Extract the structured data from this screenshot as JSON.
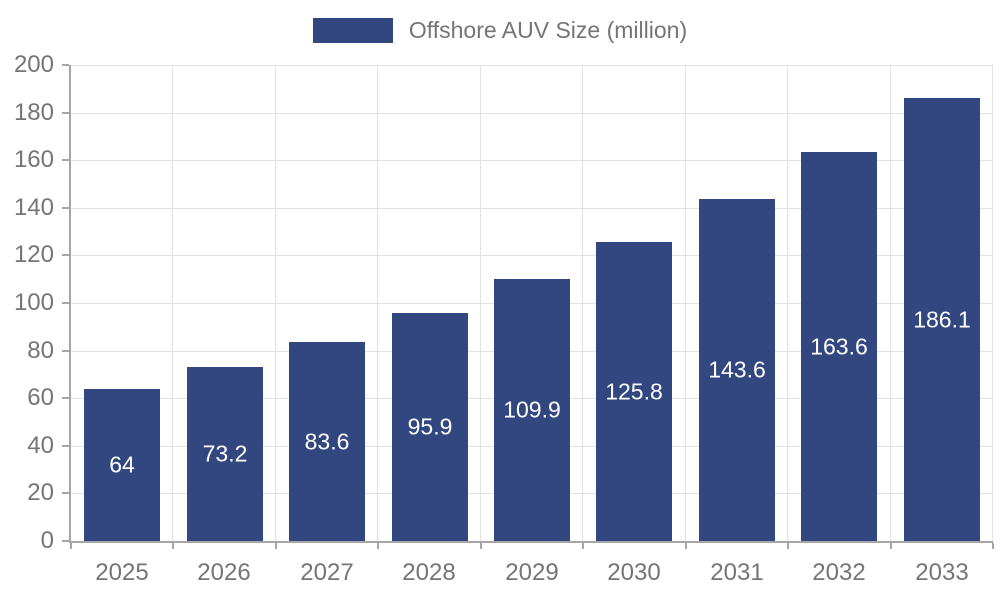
{
  "legend": {
    "label": "Offshore AUV Size (million)"
  },
  "colors": {
    "bar": "#32477F",
    "grid": "#e2e2e2",
    "axis": "#a6a6a6",
    "tick_label": "#757575",
    "bar_label": "#ffffff",
    "background": "#ffffff"
  },
  "chart_data": {
    "type": "bar",
    "title": "Offshore AUV Size (million)",
    "series_name": "Offshore AUV Size (million)",
    "categories": [
      "2025",
      "2026",
      "2027",
      "2028",
      "2029",
      "2030",
      "2031",
      "2032",
      "2033"
    ],
    "values": [
      64,
      73.2,
      83.6,
      95.9,
      109.9,
      125.8,
      143.6,
      163.6,
      186.1
    ],
    "bar_value_labels": [
      "64",
      "73.2",
      "83.6",
      "95.9",
      "109.9",
      "125.8",
      "143.6",
      "163.6",
      "186.1"
    ],
    "xlabel": "",
    "ylabel": "",
    "ylim": [
      0,
      200
    ],
    "ytick_step": 20,
    "yticks": [
      0,
      20,
      40,
      60,
      80,
      100,
      120,
      140,
      160,
      180,
      200
    ],
    "grid": true,
    "legend_position": "top-center",
    "bar_labels_inside": true
  }
}
